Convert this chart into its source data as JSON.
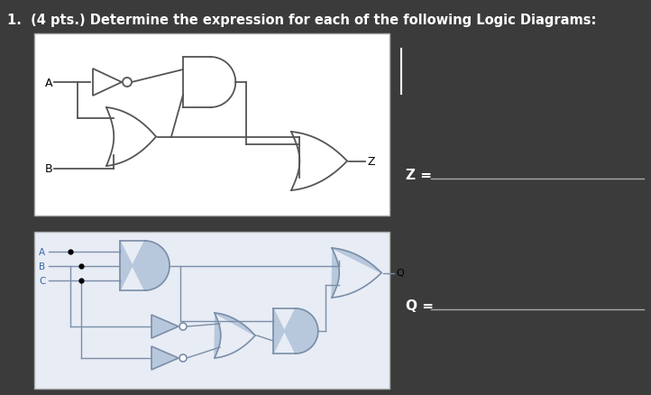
{
  "bg_color": "#3b3b3b",
  "diag1_bg": "#ffffff",
  "diag2_bg": "#e8ecf5",
  "title": "1.  (4 pts.) Determine the expression for each of the following Logic Diagrams:",
  "title_color": "#ffffff",
  "title_fontsize": 10.5,
  "line_color_1": "#555555",
  "gate_ec_1": "#555555",
  "gate_fc_1": "#ffffff",
  "line_color_2": "#7a8ea8",
  "gate_ec_2": "#7a8ea8",
  "gate_fc_2": "#b8c8dc",
  "z_eq": "Z =",
  "q_eq": "Q =",
  "label_color": "#ffffff",
  "underline_color": "#aaaaaa",
  "vert_bar_color": "#ffffff"
}
